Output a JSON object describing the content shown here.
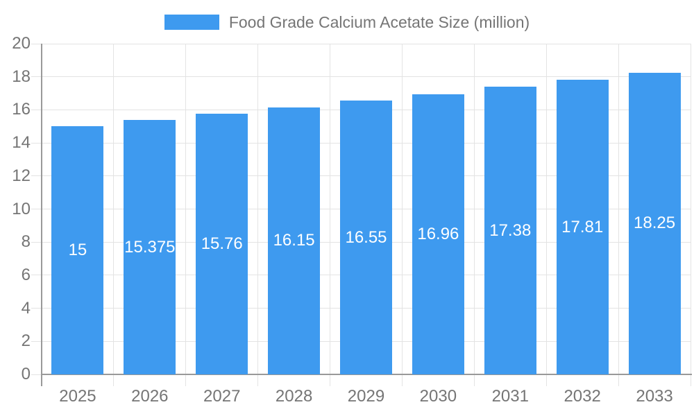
{
  "legend": {
    "label": "Food Grade Calcium Acetate Size (million)"
  },
  "chart_data": {
    "type": "bar",
    "title": "Food Grade Calcium Acetate Size (million)",
    "categories": [
      "2025",
      "2026",
      "2027",
      "2028",
      "2029",
      "2030",
      "2031",
      "2032",
      "2033"
    ],
    "values": [
      15,
      15.375,
      15.76,
      16.15,
      16.55,
      16.96,
      17.38,
      17.81,
      18.25
    ],
    "value_labels": [
      "15",
      "15.375",
      "15.76",
      "16.15",
      "16.55",
      "16.96",
      "17.38",
      "17.81",
      "18.25"
    ],
    "xlabel": "",
    "ylabel": "",
    "ylim": [
      0,
      20
    ],
    "yticks": [
      0,
      2,
      4,
      6,
      8,
      10,
      12,
      14,
      16,
      18,
      20
    ],
    "grid": true,
    "legend_position": "top-center",
    "colors": {
      "bar": "#3E9AEF",
      "bar_label": "#FFFFFF",
      "axis_line": "#999999",
      "grid_line": "#E3E3E3",
      "tick_label": "#757575",
      "legend_text": "#757575",
      "background": "#FFFFFF"
    }
  }
}
